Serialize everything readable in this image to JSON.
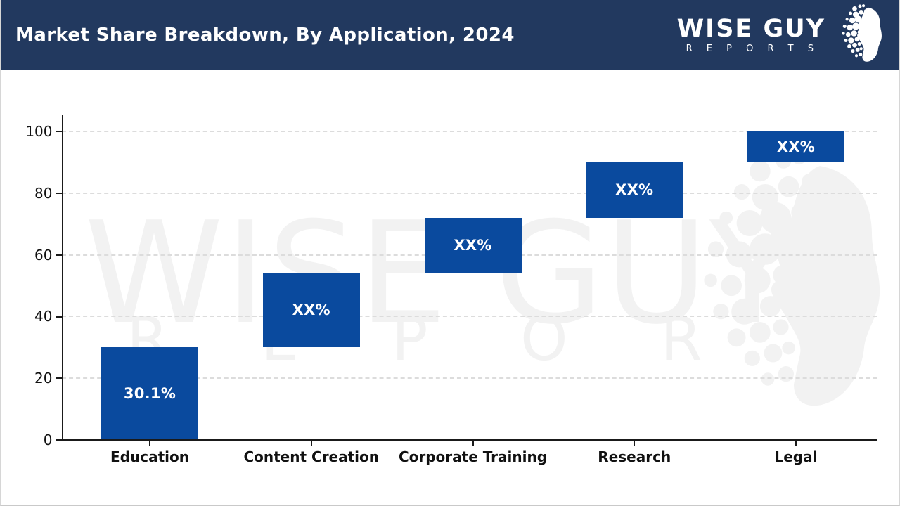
{
  "header": {
    "title": "Market Share Breakdown, By Application, 2024",
    "logo": {
      "line1": "WISE GUY",
      "line2": "R E P O R T S"
    }
  },
  "watermark": {
    "line1": "WISE GUY",
    "line2": "R E P O R T S"
  },
  "colors": {
    "header_bg": "#22395F",
    "header_text": "#FFFFFF",
    "bar": "#0A4A9E",
    "bar_label": "#FFFFFF",
    "gridline": "#DCDCDC",
    "axis": "#1A1A1A",
    "watermark": "#F2F2F2"
  },
  "chart_data": {
    "type": "bar",
    "subtype": "waterfall",
    "title": "Market Share Breakdown, By Application, 2024",
    "xlabel": "",
    "ylabel": "",
    "categories": [
      "Education",
      "Content Creation",
      "Corporate Training",
      "Research",
      "Legal"
    ],
    "segments": [
      {
        "category": "Education",
        "start": 0,
        "end": 30.1,
        "label": "30.1%"
      },
      {
        "category": "Content Creation",
        "start": 30.1,
        "end": 54,
        "label": "XX%"
      },
      {
        "category": "Corporate Training",
        "start": 54,
        "end": 72,
        "label": "XX%"
      },
      {
        "category": "Research",
        "start": 72,
        "end": 90,
        "label": "XX%"
      },
      {
        "category": "Legal",
        "start": 90,
        "end": 100,
        "label": "XX%"
      }
    ],
    "yticks": [
      0,
      20,
      40,
      60,
      80,
      100
    ],
    "ylim": [
      0,
      105
    ],
    "grid": "horizontal-dashed",
    "legend": "none"
  }
}
